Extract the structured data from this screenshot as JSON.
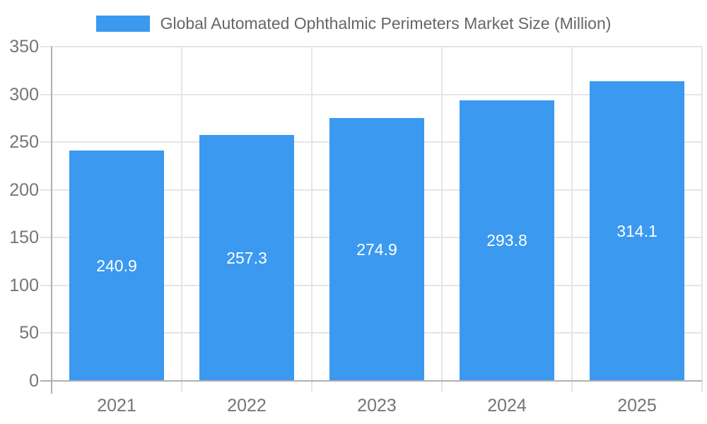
{
  "chart_data": {
    "type": "bar",
    "title": "Global Automated Ophthalmic Perimeters Market Size (Million)",
    "categories": [
      "2021",
      "2022",
      "2023",
      "2024",
      "2025"
    ],
    "series": [
      {
        "name": "Global Automated Ophthalmic Perimeters Market Size (Million)",
        "values": [
          240.9,
          257.3,
          274.9,
          293.8,
          314.1
        ]
      }
    ],
    "value_labels": [
      "240.9",
      "257.3",
      "274.9",
      "293.8",
      "314.1"
    ],
    "xlabel": "",
    "ylabel": "",
    "ylim": [
      0,
      350
    ],
    "yticks": [
      0,
      50,
      100,
      150,
      200,
      250,
      300,
      350
    ],
    "grid": true,
    "legend_position": "top-center",
    "colors": {
      "bar": "#3b99f0",
      "bar_label": "#ffffff",
      "title": "#666666",
      "axis_label": "#757575",
      "gridline": "#e5e5e5",
      "axis_line": "#b0b0b0",
      "background": "#ffffff"
    }
  }
}
